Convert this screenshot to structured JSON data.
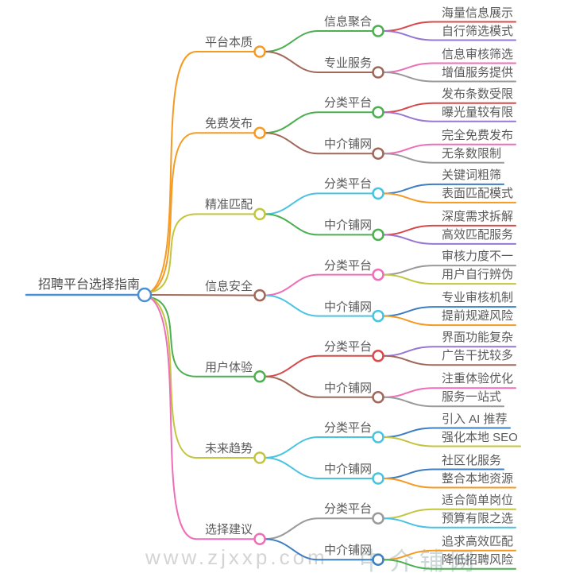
{
  "root": {
    "label": "招聘平台选择指南",
    "color": "#4a90d2"
  },
  "branches": [
    {
      "label": "平台本质",
      "color": "#f59a23",
      "children": [
        {
          "label": "信息聚合",
          "color": "#4caf50",
          "leaves": [
            {
              "label": "海量信息展示",
              "color": "#d9484a"
            },
            {
              "label": "自行筛选模式",
              "color": "#9678d3"
            }
          ]
        },
        {
          "label": "专业服务",
          "color": "#a0685a",
          "leaves": [
            {
              "label": "信息审核筛选",
              "color": "#ef6eb8"
            },
            {
              "label": "增值服务提供",
              "color": "#9a9a9a"
            }
          ]
        }
      ]
    },
    {
      "label": "免费发布",
      "color": "#f59a23",
      "children": [
        {
          "label": "分类平台",
          "color": "#4caf50",
          "leaves": [
            {
              "label": "发布条数受限",
              "color": "#d9484a"
            },
            {
              "label": "曝光量较有限",
              "color": "#9678d3"
            }
          ]
        },
        {
          "label": "中介铺网",
          "color": "#a0685a",
          "leaves": [
            {
              "label": "完全免费发布",
              "color": "#ef6eb8"
            },
            {
              "label": "无条数限制",
              "color": "#9a9a9a"
            }
          ]
        }
      ]
    },
    {
      "label": "精准匹配",
      "color": "#c2c53e",
      "children": [
        {
          "label": "分类平台",
          "color": "#4ac3e0",
          "leaves": [
            {
              "label": "关键词粗筛",
              "color": "#3d7ec2"
            },
            {
              "label": "表面匹配模式",
              "color": "#f59a23"
            }
          ]
        },
        {
          "label": "中介铺网",
          "color": "#4caf50",
          "leaves": [
            {
              "label": "深度需求拆解",
              "color": "#d9484a"
            },
            {
              "label": "高效匹配服务",
              "color": "#9678d3"
            }
          ]
        }
      ]
    },
    {
      "label": "信息安全",
      "color": "#a0685a",
      "children": [
        {
          "label": "分类平台",
          "color": "#ef6eb8",
          "leaves": [
            {
              "label": "审核力度不一",
              "color": "#9a9a9a"
            },
            {
              "label": "用户自行辨伪",
              "color": "#c2c53e"
            }
          ]
        },
        {
          "label": "中介铺网",
          "color": "#4ac3e0",
          "leaves": [
            {
              "label": "专业审核机制",
              "color": "#3d7ec2"
            },
            {
              "label": "提前规避风险",
              "color": "#f59a23"
            }
          ]
        }
      ]
    },
    {
      "label": "用户体验",
      "color": "#4caf50",
      "children": [
        {
          "label": "分类平台",
          "color": "#d9484a",
          "leaves": [
            {
              "label": "界面功能复杂",
              "color": "#9678d3"
            },
            {
              "label": "广告干扰较多",
              "color": "#a0685a"
            }
          ]
        },
        {
          "label": "中介铺网",
          "color": "#a0685a",
          "leaves": [
            {
              "label": "注重体验优化",
              "color": "#ef6eb8"
            },
            {
              "label": "服务一站式",
              "color": "#9a9a9a"
            }
          ]
        }
      ]
    },
    {
      "label": "未来趋势",
      "color": "#c2c53e",
      "children": [
        {
          "label": "分类平台",
          "color": "#4ac3e0",
          "leaves": [
            {
              "label": "引入 AI 推荐",
              "color": "#3d7ec2"
            },
            {
              "label": "强化本地 SEO",
              "color": "#c2c53e"
            }
          ]
        },
        {
          "label": "中介铺网",
          "color": "#4ac3e0",
          "leaves": [
            {
              "label": "社区化服务",
              "color": "#3d7ec2"
            },
            {
              "label": "整合本地资源",
              "color": "#f59a23"
            }
          ]
        }
      ]
    },
    {
      "label": "选择建议",
      "color": "#ef6eb8",
      "children": [
        {
          "label": "分类平台",
          "color": "#9a9a9a",
          "leaves": [
            {
              "label": "适合简单岗位",
              "color": "#c2c53e"
            },
            {
              "label": "预算有限之选",
              "color": "#4ac3e0"
            }
          ]
        },
        {
          "label": "中介铺网",
          "color": "#3d7ec2",
          "leaves": [
            {
              "label": "追求高效匹配",
              "color": "#f59a23"
            },
            {
              "label": "降低招聘风险",
              "color": "#4caf50"
            }
          ]
        }
      ]
    }
  ],
  "watermark": {
    "url_text": "www.zjxxp.com",
    "site_text": "中介铺网"
  }
}
